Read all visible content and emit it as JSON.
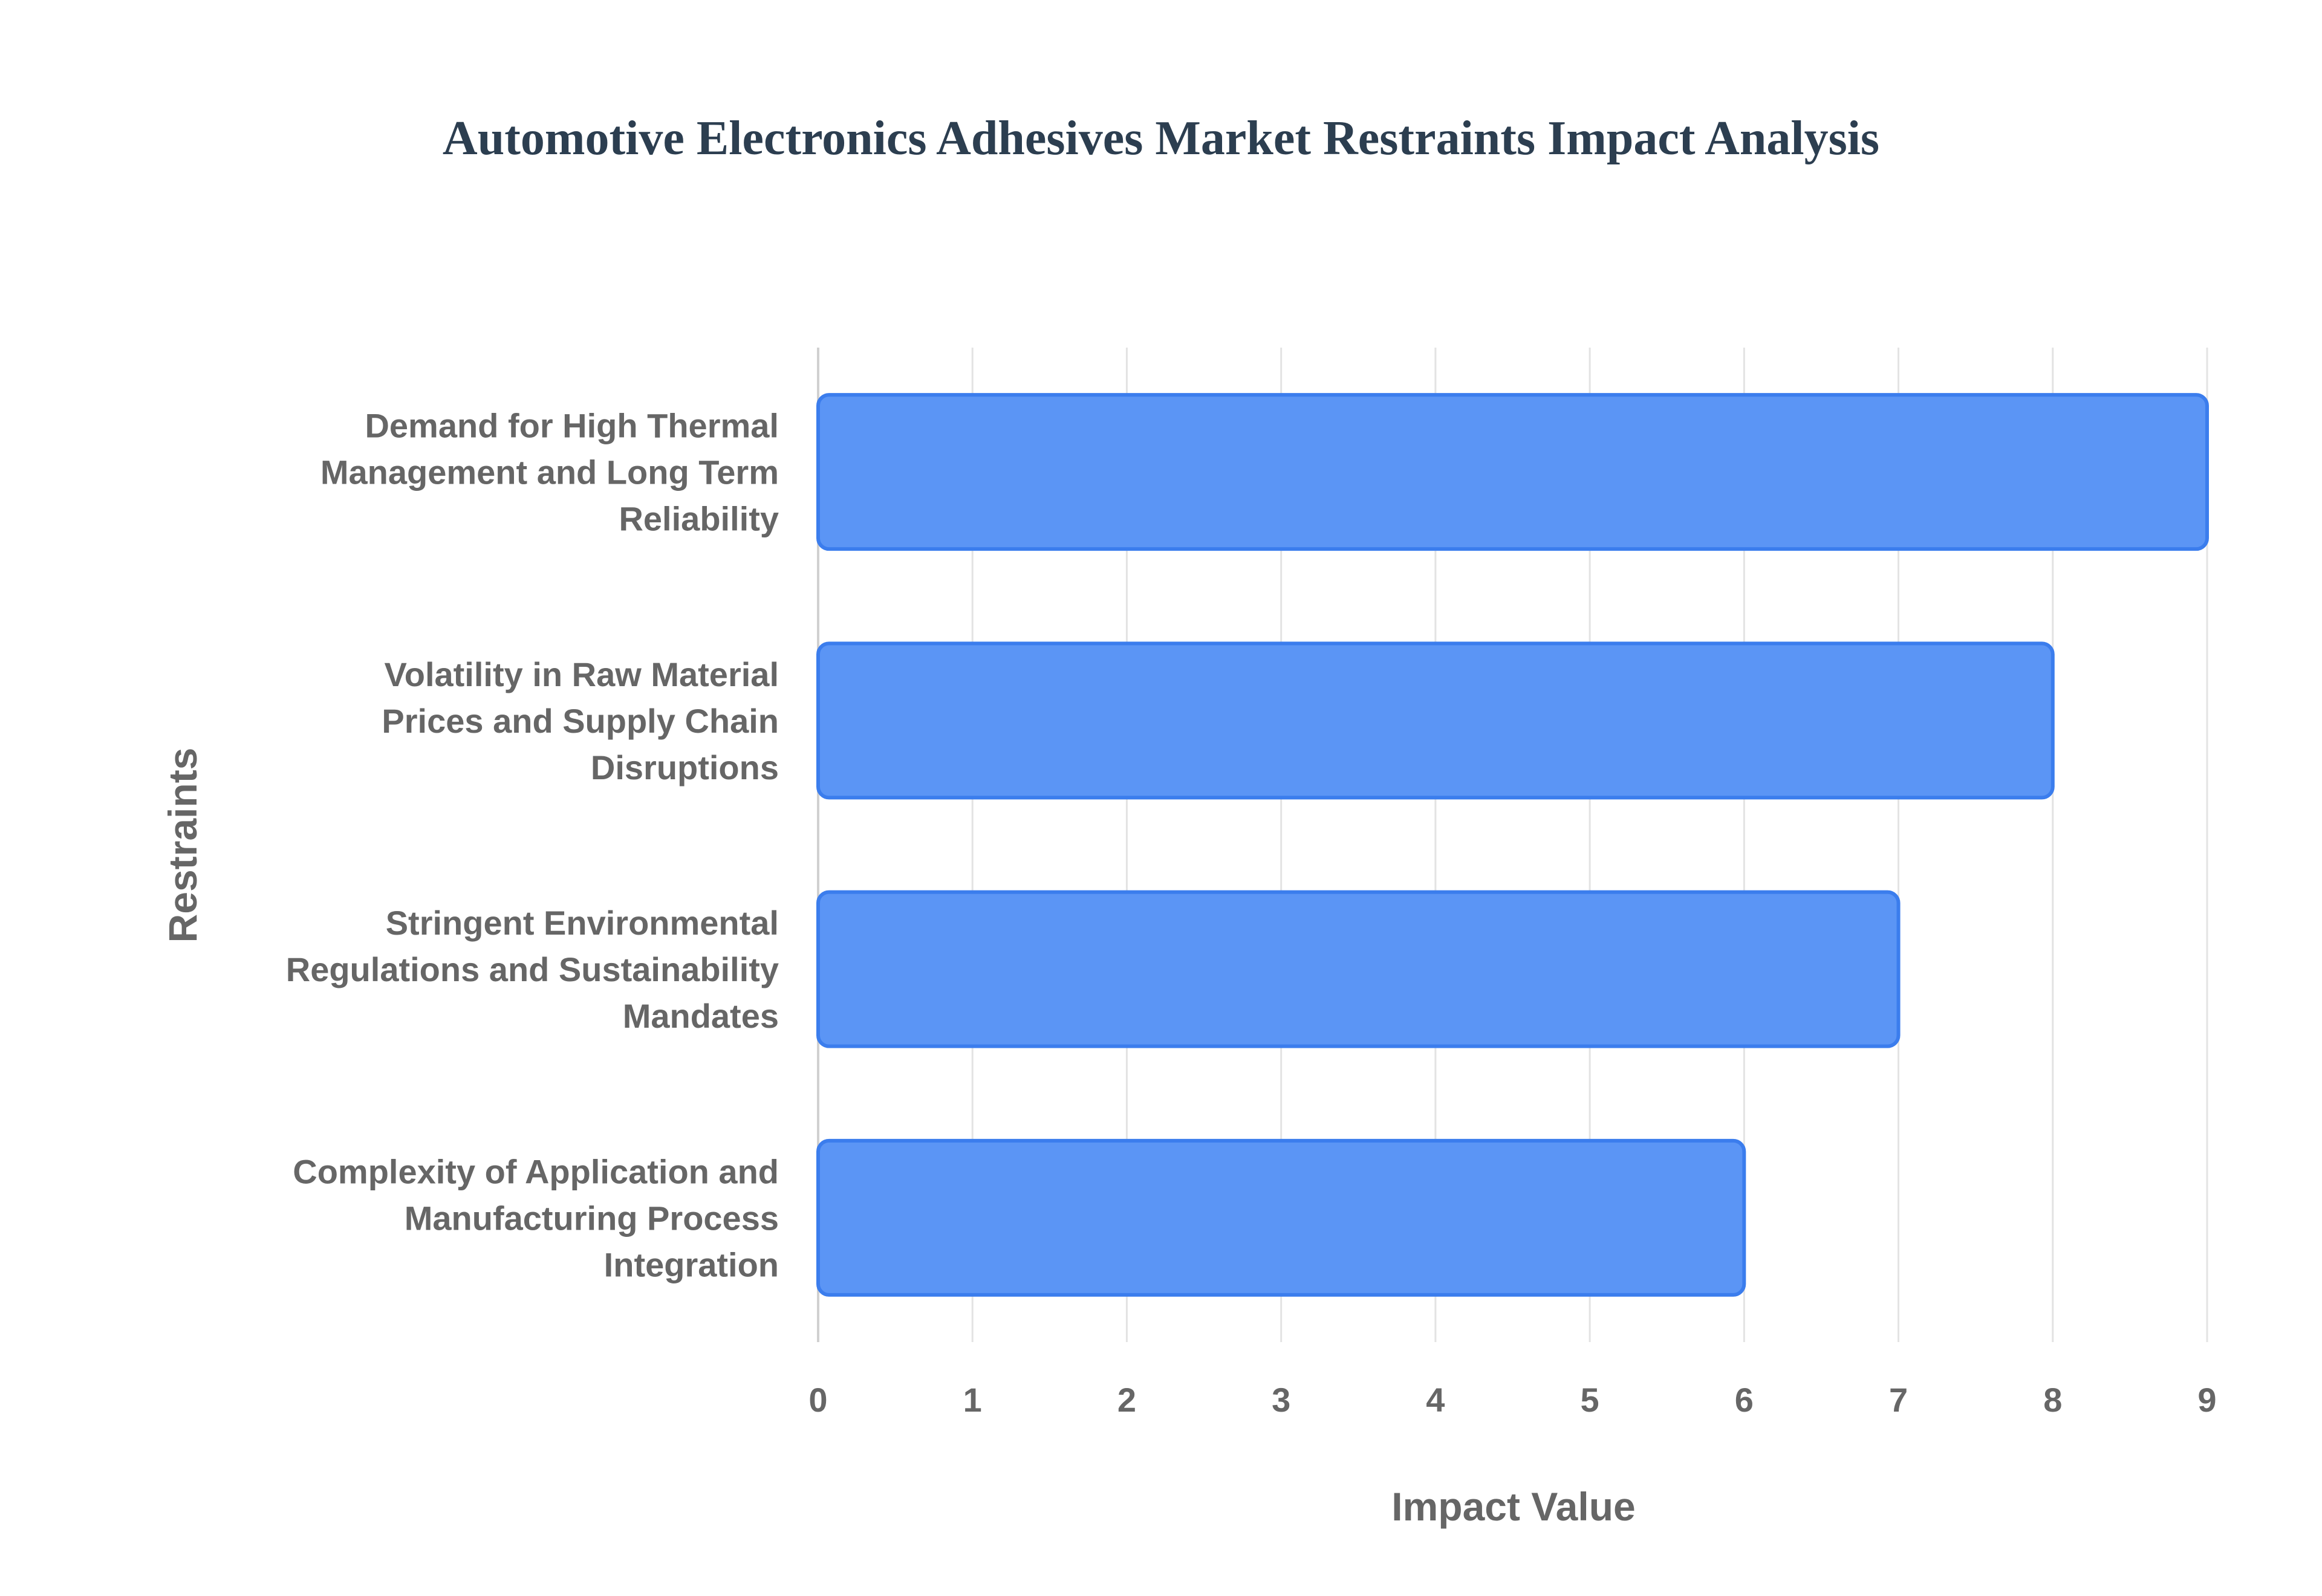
{
  "chart_data": {
    "type": "bar",
    "orientation": "horizontal",
    "title": "Automotive Electronics Adhesives Market Restraints Impact Analysis",
    "xlabel": "Impact Value",
    "ylabel": "Restraints",
    "categories": [
      [
        "Demand for High Thermal",
        "Management and Long Term",
        "Reliability"
      ],
      [
        "Volatility in Raw Material",
        "Prices and Supply Chain",
        "Disruptions"
      ],
      [
        "Stringent Environmental",
        "Regulations and Sustainability",
        "Mandates"
      ],
      [
        "Complexity of Application and",
        "Manufacturing Process",
        "Integration"
      ]
    ],
    "values": [
      9,
      8,
      7,
      6
    ],
    "xlim": [
      0,
      9
    ],
    "xticks": [
      "0",
      "1",
      "2",
      "3",
      "4",
      "5",
      "6",
      "7",
      "8",
      "9"
    ],
    "grid": true,
    "legend": "none",
    "colors": {
      "bar_fill": "#5b95f5",
      "bar_border": "#3b7ded",
      "title": "#2c3e50",
      "text": "#666666",
      "grid": "#e3e3e3"
    }
  }
}
